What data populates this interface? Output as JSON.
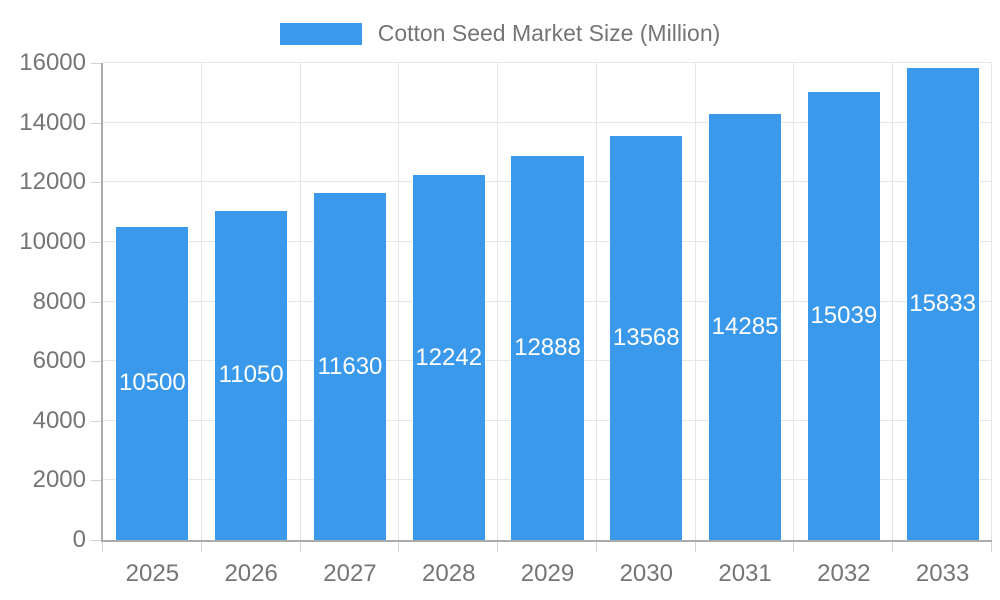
{
  "chart_data": {
    "type": "bar",
    "title": "Cotton Seed Market Size (Million)",
    "legend_label": "Cotton Seed Market Size (Million)",
    "legend_position": "top",
    "categories": [
      "2025",
      "2026",
      "2027",
      "2028",
      "2029",
      "2030",
      "2031",
      "2032",
      "2033"
    ],
    "values": [
      10500,
      11050,
      11630,
      12242,
      12888,
      13568,
      14285,
      15039,
      15833
    ],
    "xlabel": "",
    "ylabel": "",
    "ylim": [
      0,
      16000
    ],
    "yticks": [
      0,
      2000,
      4000,
      6000,
      8000,
      10000,
      12000,
      14000,
      16000
    ],
    "grid": true,
    "colors": {
      "bar": "#3b99ec",
      "bar_label": "#ffffff",
      "axis_text": "#757575",
      "grid_line": "#e6e6e6",
      "axis_line": "#ababab",
      "background": "#ffffff"
    }
  }
}
